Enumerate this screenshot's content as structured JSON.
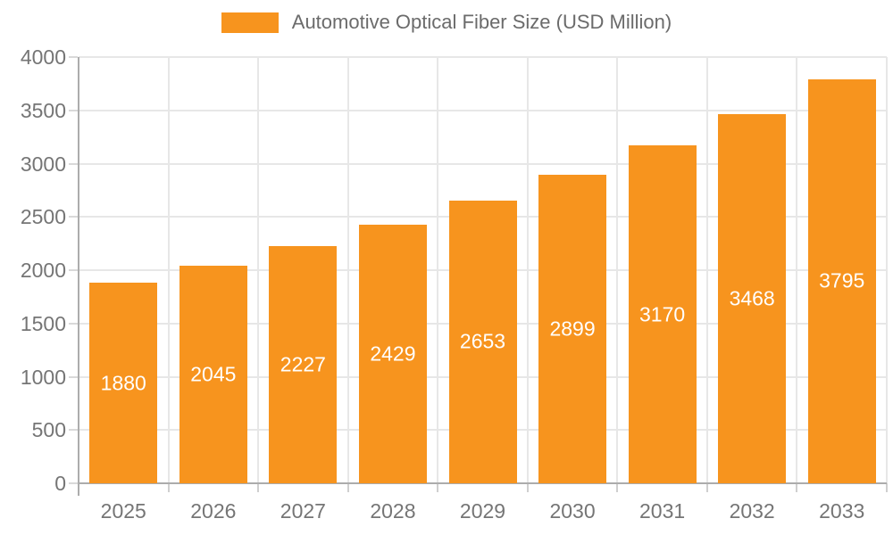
{
  "legend": {
    "label": "Automotive Optical Fiber Size (USD Million)"
  },
  "chart_data": {
    "type": "bar",
    "title": "Automotive Optical Fiber Size (USD Million)",
    "series_name": "Automotive Optical Fiber Size (USD Million)",
    "categories": [
      "2025",
      "2026",
      "2027",
      "2028",
      "2029",
      "2030",
      "2031",
      "2032",
      "2033"
    ],
    "values": [
      1880,
      2045,
      2227,
      2429,
      2653,
      2899,
      3170,
      3468,
      3795
    ],
    "value_labels": [
      "1880",
      "2045",
      "2227",
      "2429",
      "2653",
      "2899",
      "3170",
      "3468",
      "3795"
    ],
    "xlabel": "",
    "ylabel": "",
    "ylim": [
      0,
      4000
    ],
    "yticks": [
      0,
      500,
      1000,
      1500,
      2000,
      2500,
      3000,
      3500,
      4000
    ],
    "ytick_labels": [
      "0",
      "500",
      "1000",
      "1500",
      "2000",
      "2500",
      "3000",
      "3500",
      "4000"
    ],
    "grid": true,
    "legend_position": "top-center",
    "value_labels_inside_bars": true
  },
  "colors": {
    "bar": "#F7941E",
    "grid": "#E7E7E7",
    "axis": "#ACACAC",
    "y_tick": "#D9D9D9",
    "x_tick": "#CFCFCF",
    "axis_label": "#757575",
    "value_label": "#FFFFFF",
    "legend_text": "#6B6B6B",
    "background": "#FFFFFF"
  }
}
